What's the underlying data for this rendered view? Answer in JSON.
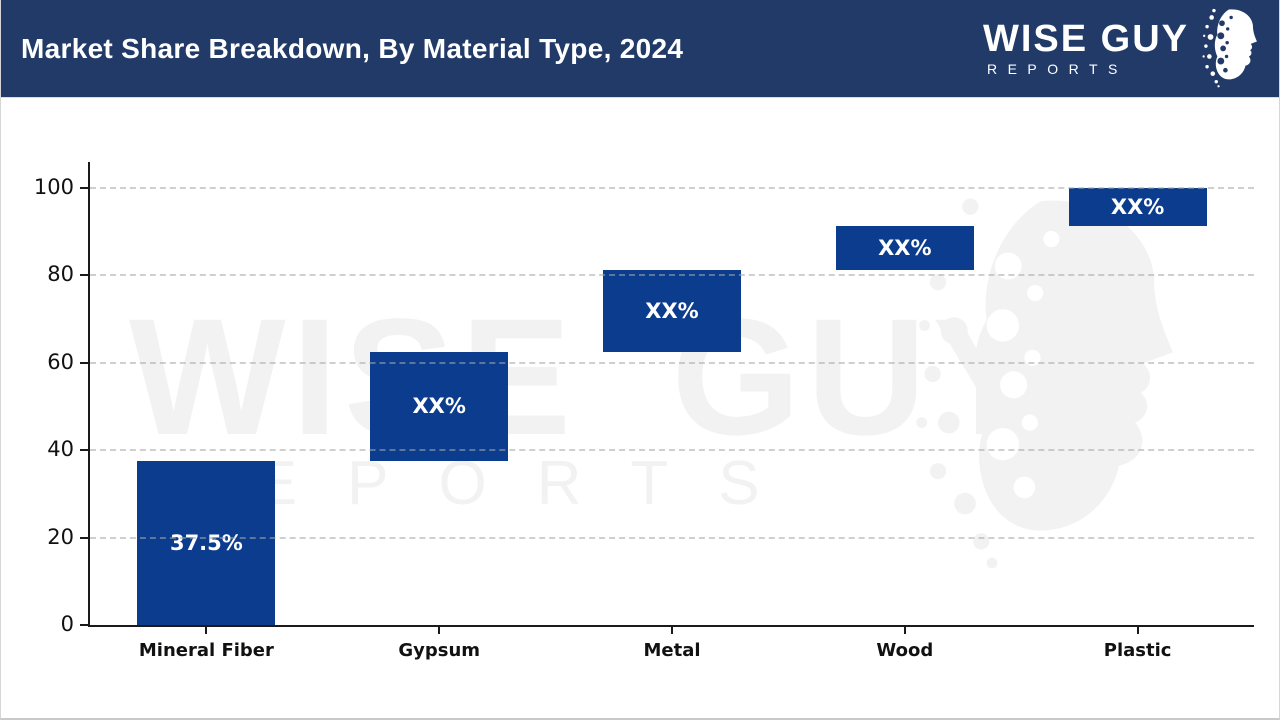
{
  "header": {
    "title": "Market Share Breakdown, By Material Type, 2024",
    "logo": {
      "primary": "WISE GUY",
      "secondary": "REPORTS"
    },
    "bg_color": "#213A68",
    "text_color": "#FFFFFF"
  },
  "watermark": {
    "primary": "WISE GUY",
    "secondary": "REPORTS"
  },
  "chart_data": {
    "type": "bar",
    "subtype": "waterfall",
    "title": "Market Share Breakdown, By Material Type, 2024",
    "categories": [
      "Mineral Fiber",
      "Gypsum",
      "Metal",
      "Wood",
      "Plastic"
    ],
    "bar_labels": [
      "37.5%",
      "XX%",
      "XX%",
      "XX%",
      "XX%"
    ],
    "bar_ranges": [
      [
        0,
        37.5
      ],
      [
        37.5,
        62.5
      ],
      [
        62.5,
        81.25
      ],
      [
        81.25,
        91.25
      ],
      [
        91.25,
        100
      ]
    ],
    "segment_values": [
      37.5,
      25,
      18.75,
      10,
      8.75
    ],
    "yticks": [
      0,
      20,
      40,
      60,
      80,
      100
    ],
    "ylim": [
      0,
      104.5
    ],
    "xlabel": "",
    "ylabel": "",
    "grid": "horizontal-dashed",
    "grid_above_bars": true,
    "bar_color": "#0B3C8E",
    "bar_label_color": "#FFFFFF",
    "axis_color": "#1A1A1A",
    "tick_label_color": "#111111"
  }
}
